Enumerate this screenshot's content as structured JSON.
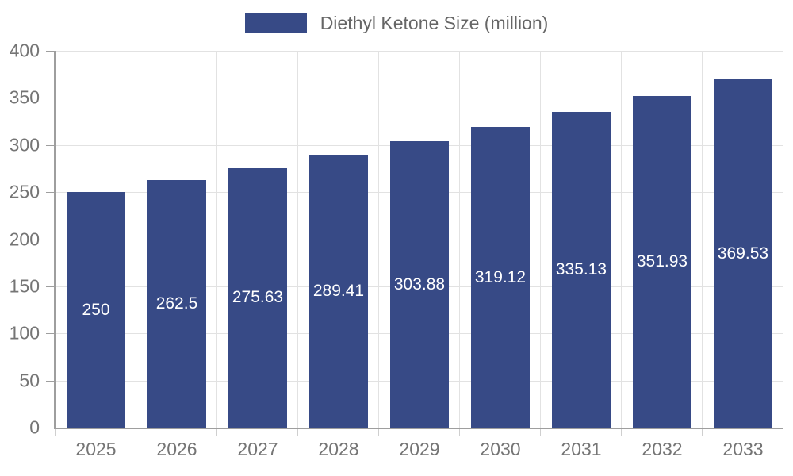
{
  "chart_data": {
    "type": "bar",
    "title": "",
    "categories": [
      "2025",
      "2026",
      "2027",
      "2028",
      "2029",
      "2030",
      "2031",
      "2032",
      "2033"
    ],
    "series": [
      {
        "name": "Diethyl Ketone Size (million)",
        "values": [
          250,
          262.5,
          275.63,
          289.41,
          303.88,
          319.12,
          335.13,
          351.93,
          369.53
        ],
        "labels": [
          "250",
          "262.5",
          "275.63",
          "289.41",
          "303.88",
          "319.12",
          "335.13",
          "351.93",
          "369.53"
        ],
        "color": "#374a86"
      }
    ],
    "xlabel": "",
    "ylabel": "",
    "ylim": [
      0,
      400
    ],
    "yticks": [
      0,
      50,
      100,
      150,
      200,
      250,
      300,
      350,
      400
    ],
    "grid": true,
    "legend_position": "top-center",
    "value_label_position": "inside-center",
    "value_label_color": "#ffffff"
  },
  "colors": {
    "bar": "#374a86",
    "grid": "#e2e2e2",
    "axis": "#9e9e9e",
    "x_tick": "#cfcfcf",
    "y_tick": "#9e9e9e",
    "axis_label": "#757575",
    "legend_text": "#666666",
    "background": "#ffffff"
  }
}
